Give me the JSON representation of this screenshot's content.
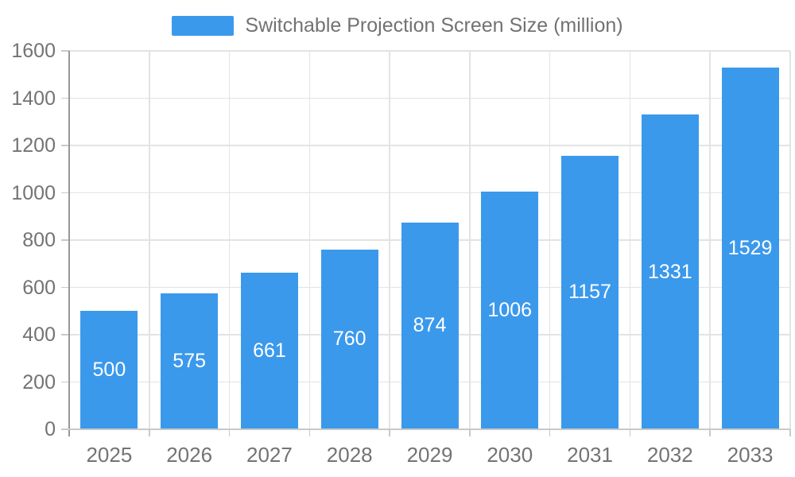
{
  "legend": {
    "label": "Switchable Projection Screen Size (million)"
  },
  "colors": {
    "bar": "#3B99EC",
    "legend_text": "#727272",
    "axis_text": "#737373",
    "value_label_text": "#FFFFFF"
  },
  "chart_data": {
    "type": "bar",
    "title": "Switchable Projection Screen Size (million)",
    "categories": [
      "2025",
      "2026",
      "2027",
      "2028",
      "2029",
      "2030",
      "2031",
      "2032",
      "2033"
    ],
    "values": [
      500,
      575,
      661,
      760,
      874,
      1006,
      1157,
      1331,
      1529
    ],
    "series": [
      {
        "name": "Switchable Projection Screen Size (million)",
        "values": [
          500,
          575,
          661,
          760,
          874,
          1006,
          1157,
          1331,
          1529
        ]
      }
    ],
    "xlabel": "",
    "ylabel": "",
    "ylim": [
      0,
      1600
    ],
    "ytick_step": 200,
    "ytick_labels": [
      "0",
      "200",
      "400",
      "600",
      "800",
      "1000",
      "1200",
      "1400",
      "1600"
    ],
    "grid": true,
    "legend_position": "top",
    "value_labels": "inside-center"
  }
}
